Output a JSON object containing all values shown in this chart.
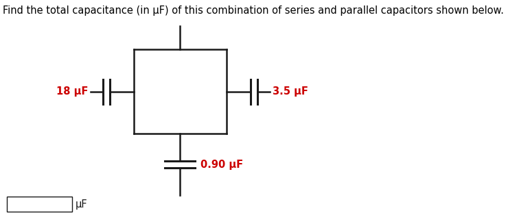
{
  "title": "Find the total capacitance (in μF) of this combination of series and parallel capacitors shown below.",
  "title_fontsize": 10.5,
  "title_color": "#000000",
  "bg_color": "#ffffff",
  "cap_color": "#cc0000",
  "line_color": "#1a1a1a",
  "label_18": "18 μF",
  "label_35": "3.5 μF",
  "label_090": "0.90 μF",
  "label_uf": "μF"
}
